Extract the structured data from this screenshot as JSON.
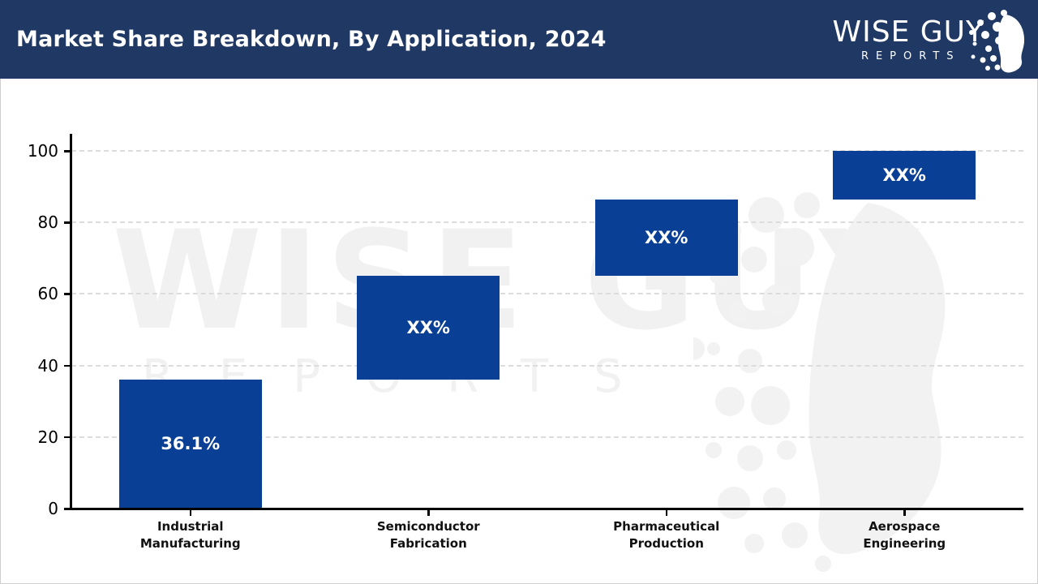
{
  "header": {
    "bg_color": "#1f3864",
    "title": "Market Share Breakdown, By Application, 2024",
    "logo": {
      "line1": "WISE GUY",
      "line2": "REPORTS"
    }
  },
  "watermark": {
    "line1": "WISE GUY",
    "line2": "REPORTS"
  },
  "chart_data": {
    "type": "bar",
    "subtype": "waterfall-floating-bars",
    "title": "Market Share Breakdown, By Application, 2024",
    "categories": [
      "Industrial\nManufacturing",
      "Semiconductor\nFabrication",
      "Pharmaceutical\nProduction",
      "Aerospace\nEngineering"
    ],
    "bars": [
      {
        "category": "Industrial\nManufacturing",
        "start": 0,
        "end": 36.1,
        "value": 36.1,
        "label": "36.1%"
      },
      {
        "category": "Semiconductor\nFabrication",
        "start": 36.1,
        "end": 65,
        "value": 28.9,
        "label": "XX%"
      },
      {
        "category": "Pharmaceutical\nProduction",
        "start": 65,
        "end": 86.4,
        "value": 21.4,
        "label": "XX%"
      },
      {
        "category": "Aerospace\nEngineering",
        "start": 86.4,
        "end": 100,
        "value": 13.6,
        "label": "XX%"
      }
    ],
    "yticks": [
      0,
      20,
      40,
      60,
      80,
      100
    ],
    "ylim": [
      0,
      100
    ],
    "xlabel": "",
    "ylabel": "",
    "grid": "horizontal-dashed",
    "legend": "none",
    "bar_color": "#0a3f96",
    "bar_label_color": "#ffffff",
    "gridline_color": "#dcdcdc",
    "axis_color": "#000000"
  }
}
